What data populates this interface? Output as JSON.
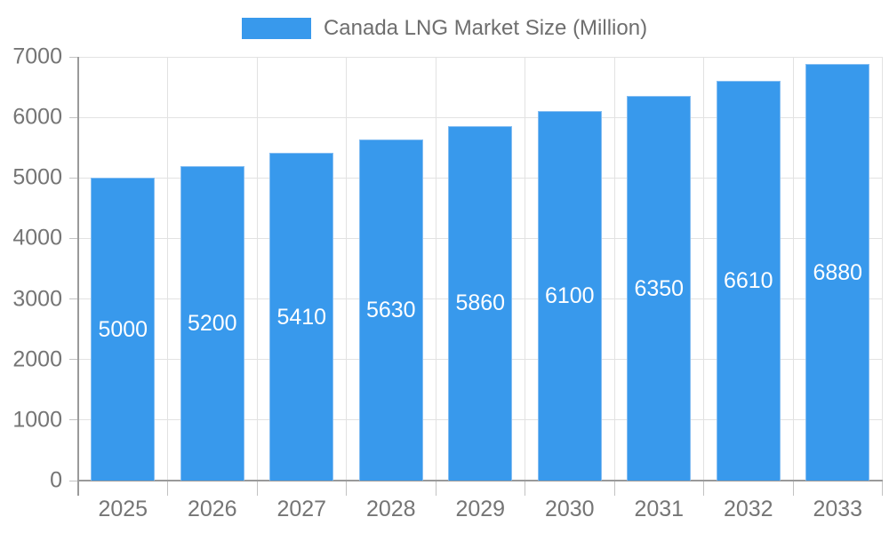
{
  "legend": {
    "items": [
      {
        "label": "Canada LNG Market Size (Million)",
        "color": "#3899ec"
      }
    ]
  },
  "chart_data": {
    "type": "bar",
    "title": "Canada LNG Market Size (Million)",
    "categories": [
      "2025",
      "2026",
      "2027",
      "2028",
      "2029",
      "2030",
      "2031",
      "2032",
      "2033"
    ],
    "series": [
      {
        "name": "Canada LNG Market Size (Million)",
        "values": [
          5000,
          5200,
          5410,
          5630,
          5860,
          6100,
          6350,
          6610,
          6880
        ]
      }
    ],
    "value_labels": [
      "5000",
      "5200",
      "5410",
      "5630",
      "5860",
      "6100",
      "6350",
      "6610",
      "6880"
    ],
    "xlabel": "",
    "ylabel": "",
    "ylim": [
      0,
      7000
    ],
    "yticks": [
      0,
      1000,
      2000,
      3000,
      4000,
      5000,
      6000,
      7000
    ],
    "grid": "horizontal-and-vertical",
    "legend_position": "top-center",
    "value_label_position": "inside-center",
    "colors": {
      "bar": "#3899ec",
      "bar_edge": "#84bdf2",
      "axis": "#9a9a9a",
      "grid": "#e2e2e2",
      "tick": "#c2c2c2",
      "axis_text": "#757575",
      "legend_text": "#6e6e6e",
      "value_text": "#ffffff"
    }
  }
}
